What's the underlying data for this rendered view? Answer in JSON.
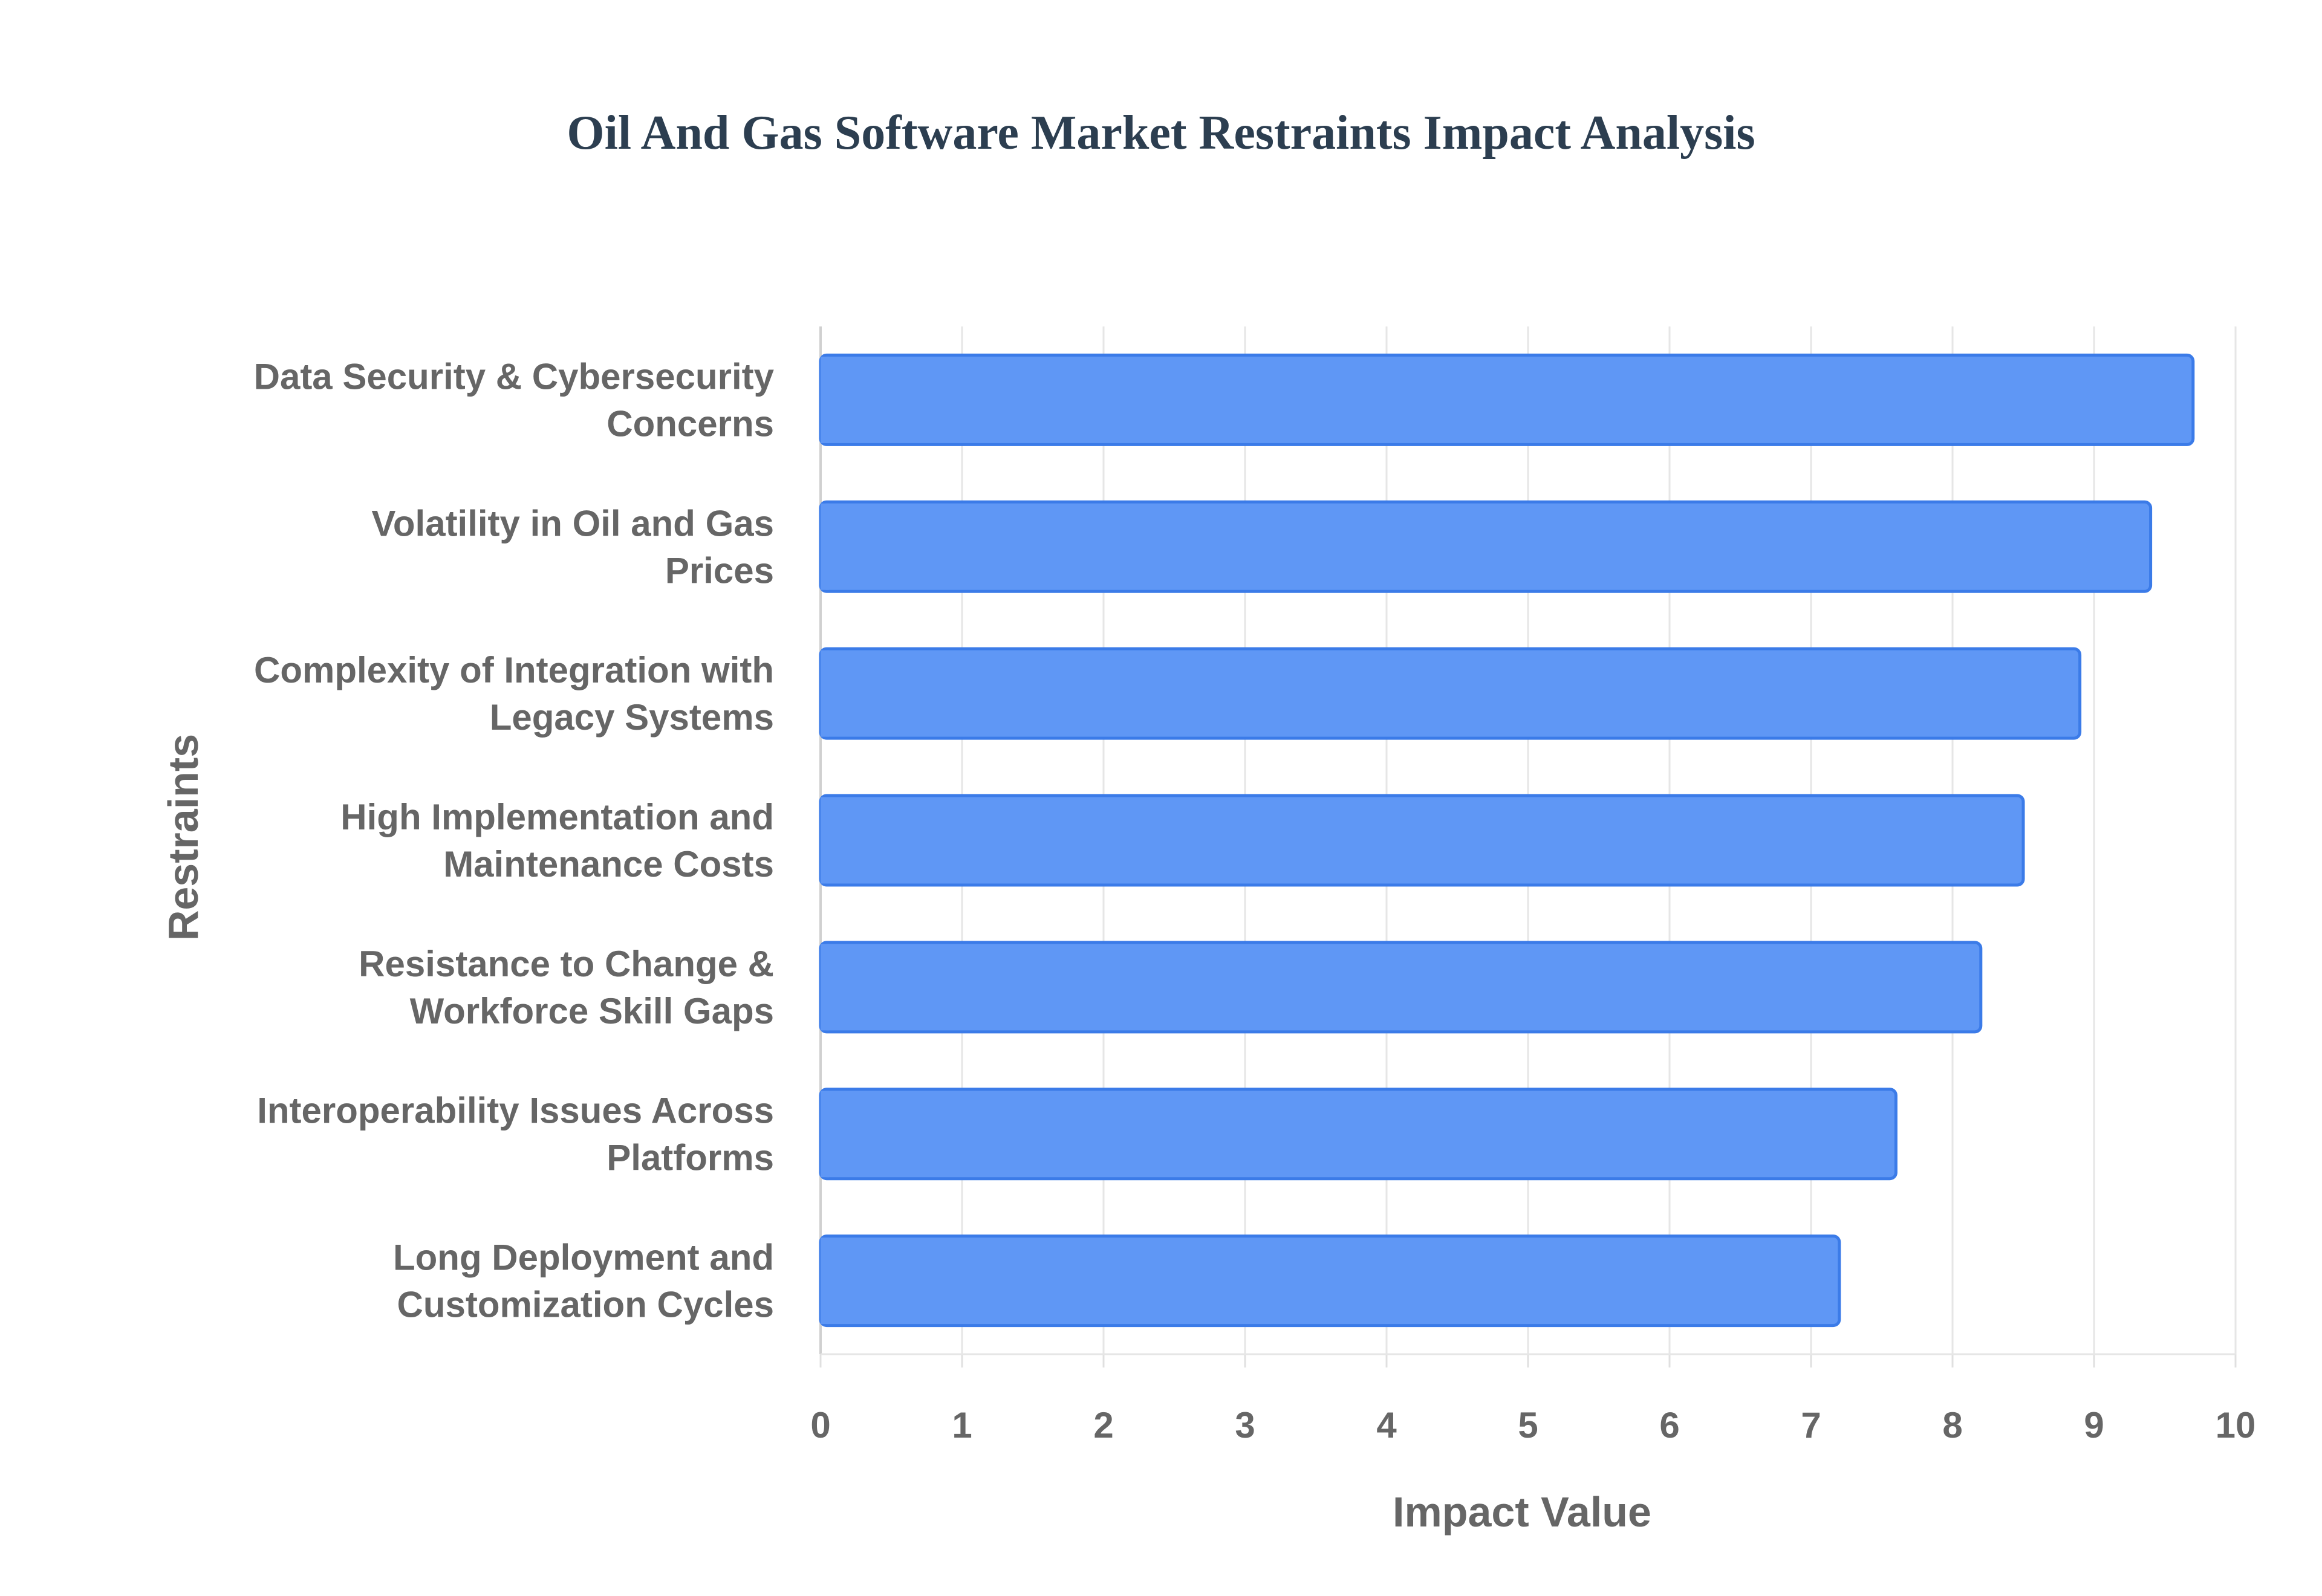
{
  "chart_data": {
    "type": "bar",
    "orientation": "horizontal",
    "title": "Oil And Gas Software Market Restraints Impact Analysis",
    "xlabel": "Impact Value",
    "ylabel": "Restraints",
    "xlim": [
      0,
      10
    ],
    "x_ticks": [
      "0",
      "1",
      "2",
      "3",
      "4",
      "5",
      "6",
      "7",
      "8",
      "9",
      "10"
    ],
    "grid": true,
    "bar_color": "#5f97f5",
    "bar_border_color": "#3b7be8",
    "categories": [
      [
        "Data Security & Cybersecurity",
        "Concerns"
      ],
      [
        "Volatility in Oil and Gas",
        "Prices"
      ],
      [
        "Complexity of Integration with",
        "Legacy Systems"
      ],
      [
        "High Implementation and",
        "Maintenance Costs"
      ],
      [
        "Resistance to Change &",
        "Workforce Skill Gaps"
      ],
      [
        "Interoperability Issues Across",
        "Platforms"
      ],
      [
        "Long Deployment and",
        "Customization Cycles"
      ]
    ],
    "values": [
      9.7,
      9.4,
      8.9,
      8.5,
      8.2,
      7.6,
      7.2
    ]
  }
}
